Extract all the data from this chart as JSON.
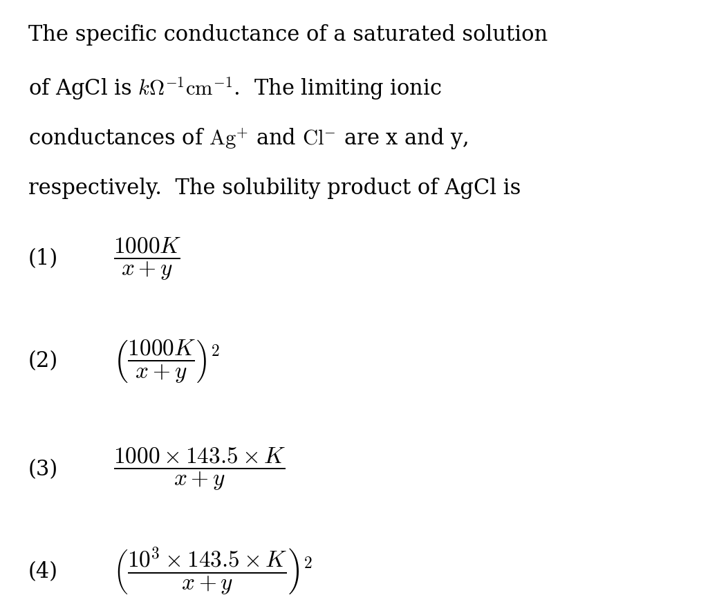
{
  "background_color": "#ffffff",
  "text_color": "#000000",
  "figsize": [
    10.24,
    8.74
  ],
  "dpi": 100,
  "paragraph": "The specific conductance of a saturated solution of AgCl is $k\\Omega^{-1}\\mathrm{cm}^{-1}$.  The limiting ionic conductances of $\\mathrm{Ag}^{+}$ and $\\mathrm{Cl}^{-}$ are x and y, respectively.  The solubility product of AgCl is",
  "options": [
    {
      "label": "(1)",
      "expr": "$\\dfrac{1000K}{x+y}$"
    },
    {
      "label": "(2)",
      "expr": "$\\left(\\dfrac{1000K}{x+y}\\right)^{2}$"
    },
    {
      "label": "(3)",
      "expr": "$\\dfrac{1000 \\times 143.5 \\times K}{x+y}$"
    },
    {
      "label": "(4)",
      "expr": "$\\left(\\dfrac{10^{3} \\times 143.5 \\times K}{x+y}\\right)^{2}$"
    }
  ],
  "font_size_paragraph": 22,
  "font_size_options": 24,
  "font_size_label": 22
}
